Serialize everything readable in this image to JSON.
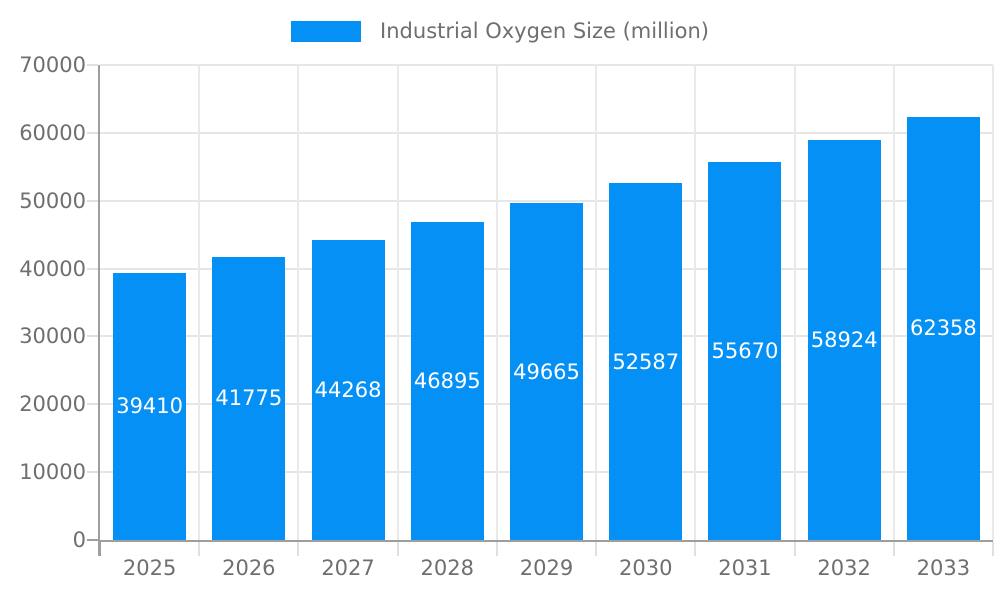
{
  "chart_data": {
    "type": "bar",
    "title": "Industrial Oxygen Size (million)",
    "categories": [
      "2025",
      "2026",
      "2027",
      "2028",
      "2029",
      "2030",
      "2031",
      "2032",
      "2033"
    ],
    "values": [
      39410,
      41775,
      44268,
      46895,
      49665,
      52587,
      55670,
      58924,
      62358
    ],
    "series": [
      {
        "name": "Industrial Oxygen Size (million)",
        "values": [
          39410,
          41775,
          44268,
          46895,
          49665,
          52587,
          55670,
          58924,
          62358
        ]
      }
    ],
    "xlabel": "",
    "ylabel": "",
    "ylim": [
      0,
      70000
    ],
    "yticks": [
      0,
      10000,
      20000,
      30000,
      40000,
      50000,
      60000,
      70000
    ],
    "grid": true,
    "legend_position": "top-center",
    "value_labels": "inside-center",
    "colors": {
      "bar": "#0590f5",
      "value_label": "#ffffff",
      "axis_line": "#9e9e9e",
      "gridline": "#e6e6e6",
      "tick": "#e0e0e0",
      "axis_text": "#6f6f6f",
      "background": "#ffffff"
    }
  }
}
